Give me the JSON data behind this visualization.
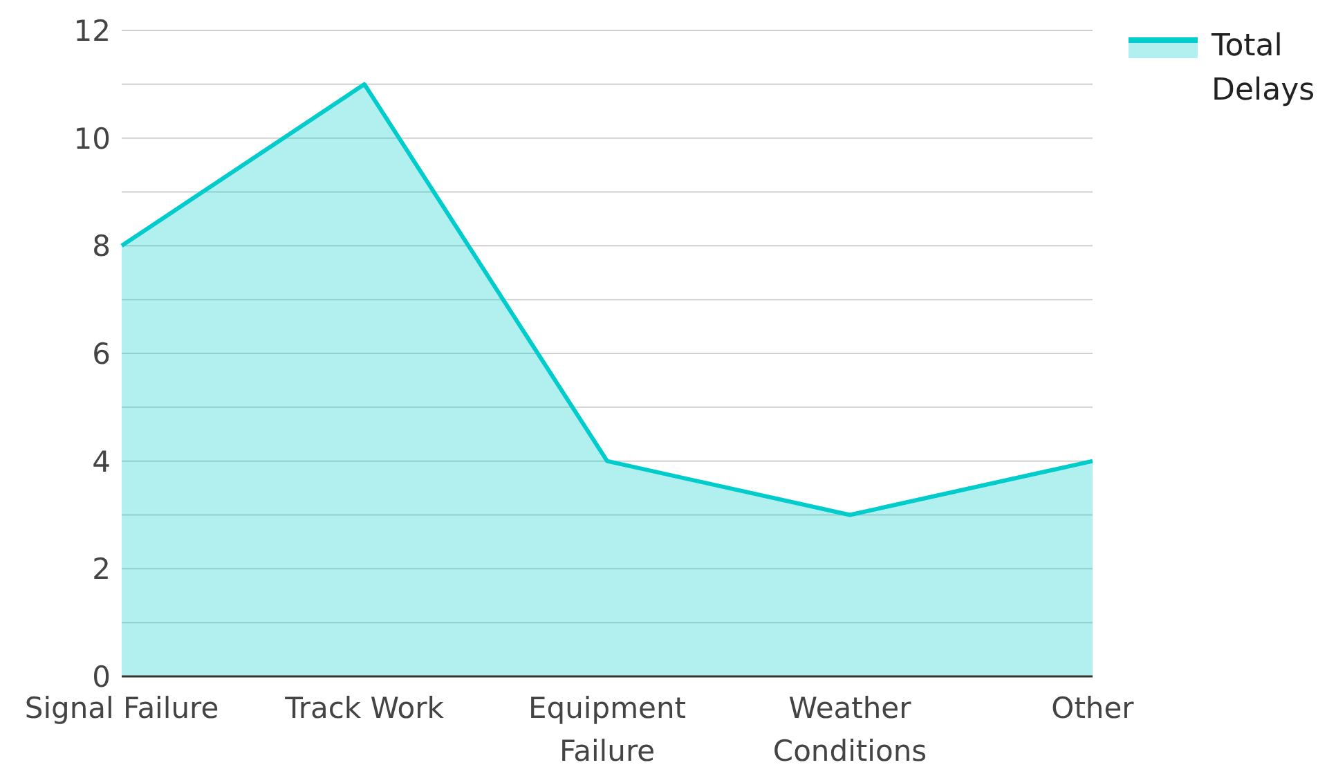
{
  "chart_data": {
    "type": "area",
    "categories": [
      "Signal Failure",
      "Track Work",
      "Equipment Failure",
      "Weather Conditions",
      "Other"
    ],
    "series": [
      {
        "name": "Total Delays",
        "color": "#00cccc",
        "values": [
          8,
          11,
          4,
          3,
          4
        ]
      }
    ],
    "ylim": [
      0,
      12
    ],
    "yticks": [
      0,
      {
        "value": 1,
        "label": null
      },
      2,
      {
        "value": 3,
        "label": null
      },
      4,
      {
        "value": 5,
        "label": null
      },
      6,
      {
        "value": 7,
        "label": null
      },
      8,
      {
        "value": 9,
        "label": null
      },
      10,
      {
        "value": 11,
        "label": null
      },
      12
    ],
    "grid": "y",
    "legend": "top right"
  }
}
